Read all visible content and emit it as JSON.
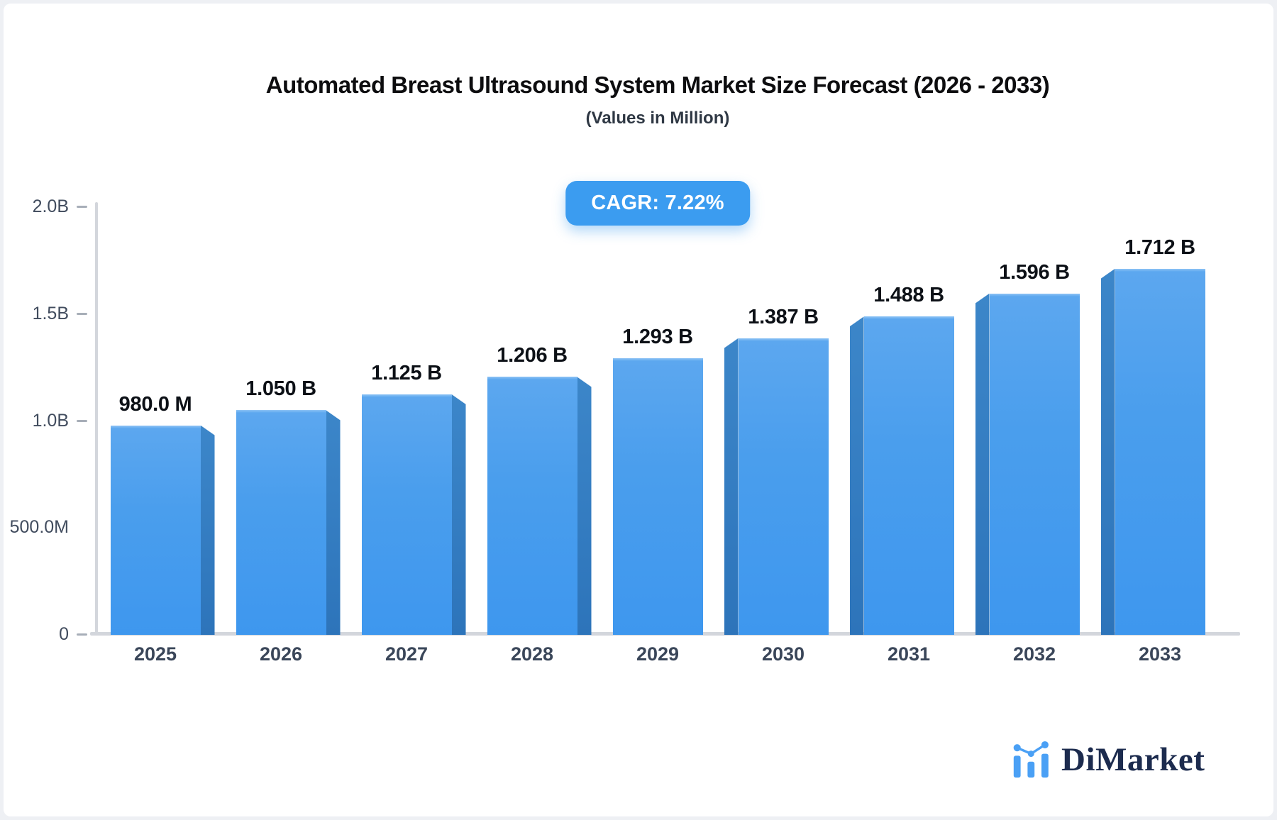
{
  "page": {
    "background": "#eef0f4",
    "card_background": "#ffffff"
  },
  "header": {
    "title": "Automated Breast Ultrasound System Market Size Forecast (2026 - 2033)",
    "subtitle": "(Values in Million)",
    "cagr_badge": "CAGR: 7.22%"
  },
  "chart_data": {
    "type": "bar",
    "title": "Automated Breast Ultrasound System Market Size Forecast (2026 - 2033)",
    "subtitle": "(Values in Million)",
    "cagr_percent": 7.22,
    "unit": "Million",
    "categories": [
      "2025",
      "2026",
      "2027",
      "2028",
      "2029",
      "2030",
      "2031",
      "2032",
      "2033"
    ],
    "values_in_millions": [
      980,
      1050,
      1125,
      1206,
      1293,
      1387,
      1488,
      1596,
      1712
    ],
    "value_labels": [
      "980.0 M",
      "1.050 B",
      "1.125 B",
      "1.206 B",
      "1.293 B",
      "1.387 B",
      "1.488 B",
      "1.596 B",
      "1.712 B"
    ],
    "ylim": [
      0,
      2000
    ],
    "yticks": [
      {
        "label": "2.0B",
        "value": 2000,
        "dash": true
      },
      {
        "label": "1.5B",
        "value": 1500,
        "dash": true
      },
      {
        "label": "1.0B",
        "value": 1000,
        "dash": true
      },
      {
        "label": "500.0M",
        "value": 500,
        "dash": false
      },
      {
        "label": "0",
        "value": 0,
        "dash": true
      }
    ],
    "grid": false,
    "legend": null,
    "bar_color_top": "#5ca7ef",
    "bar_color_bottom": "#3e97ee",
    "bar_side_color": "#2f79bf"
  },
  "branding": {
    "name": "DiMarket",
    "icon": "bar-line-chart-icon",
    "text_color": "#1c2b4e",
    "icon_color": "#4aa0f5"
  },
  "colors": {
    "accent_blue": "#3b9cf0",
    "axis_line": "#d3d6dc",
    "tick": "#a7aeb8",
    "axis_label": "#414c5e",
    "year_label": "#3a4659",
    "value_label": "#0c1016"
  }
}
